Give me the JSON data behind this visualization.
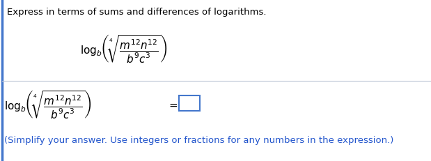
{
  "background_color": "#ffffff",
  "title_text": "Express in terms of sums and differences of logarithms.",
  "title_color": "#000000",
  "title_fontsize": 9.5,
  "top_formula": "$\\mathrm{log}_b\\left(\\sqrt[4]{\\dfrac{m^{12}n^{12}}{b^9c^3}}\\right)$",
  "bottom_formula": "$\\mathrm{log}_b\\left(\\sqrt[4]{\\dfrac{m^{12}n^{12}}{b^9c^3}}\\right)$",
  "equals_sign": "$=$",
  "note_text": "(Simplify your answer. Use integers or fractions for any numbers in the expression.)",
  "note_color": "#2255cc",
  "formula_color": "#000000",
  "divider_color": "#c0c8d8",
  "box_edge_color": "#4477cc",
  "box_face_color": "#ffffff",
  "left_border_color": "#4477cc",
  "formula_fontsize": 11,
  "note_fontsize": 9.5
}
